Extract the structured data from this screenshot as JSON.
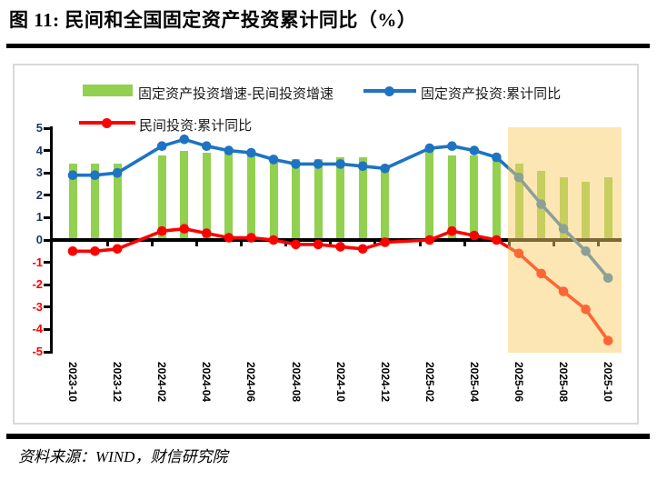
{
  "title": "图 11: 民间和全国固定资产投资累计同比（%）",
  "source": "资料来源：WIND，财信研究院",
  "legend": [
    {
      "label": "固定资产投资增速-民间投资增速",
      "type": "bar"
    },
    {
      "label": "固定资产投资:累计同比",
      "type": "line"
    },
    {
      "label": "民间投资:累计同比",
      "type": "line"
    }
  ],
  "colors": {
    "bar_green": "#92D050",
    "line_blue": "#1E73C2",
    "line_red": "#FF0000",
    "y_label_positive": "#1F3864",
    "y_label_negative": "#FF0000",
    "axis_black": "#000000",
    "highlight_overlay": "rgba(250,205,105,0.5)",
    "card_border": "#D9D9D9"
  },
  "chart_data": {
    "type": "bar",
    "subtype": "bar + line combo, monthly timeline with empty January slots",
    "title": "民间和全国固定资产投资累计同比（%）",
    "ylim": [
      -5,
      5
    ],
    "y_ticks": [
      5,
      4,
      3,
      2,
      1,
      0,
      -1,
      -2,
      -3,
      -4,
      -5
    ],
    "x_slots": [
      "2023-10",
      "2023-11",
      "2023-12",
      "2024-01",
      "2024-02",
      "2024-03",
      "2024-04",
      "2024-05",
      "2024-06",
      "2024-07",
      "2024-08",
      "2024-09",
      "2024-10",
      "2024-11",
      "2024-12",
      "2025-01",
      "2025-02",
      "2025-03",
      "2025-04",
      "2025-05",
      "2025-06",
      "2025-07",
      "2025-08",
      "2025-09",
      "2025-10"
    ],
    "x_tick_labels": [
      "2023-10",
      "2023-12",
      "2024-02",
      "2024-04",
      "2024-06",
      "2024-08",
      "2024-10",
      "2024-12",
      "2025-02",
      "2025-04",
      "2025-06",
      "2025-08",
      "2025-10"
    ],
    "series": [
      {
        "name": "固定资产投资增速-民间投资增速",
        "type": "bar",
        "color": "#92D050",
        "values": [
          3.4,
          3.4,
          3.4,
          null,
          3.8,
          4.0,
          3.9,
          3.9,
          3.8,
          3.6,
          3.6,
          3.6,
          3.7,
          3.7,
          3.3,
          null,
          4.1,
          3.8,
          3.8,
          3.7,
          3.4,
          3.1,
          2.8,
          2.6,
          2.8
        ]
      },
      {
        "name": "固定资产投资:累计同比",
        "type": "line",
        "color": "#1E73C2",
        "values": [
          2.9,
          2.9,
          3.0,
          null,
          4.2,
          4.5,
          4.2,
          4.0,
          3.9,
          3.6,
          3.4,
          3.4,
          3.4,
          3.3,
          3.2,
          null,
          4.1,
          4.2,
          4.0,
          3.7,
          2.8,
          1.6,
          0.5,
          -0.5,
          -1.7
        ]
      },
      {
        "name": "民间投资:累计同比",
        "type": "line",
        "color": "#FF0000",
        "values": [
          -0.5,
          -0.5,
          -0.4,
          null,
          0.4,
          0.5,
          0.3,
          0.1,
          0.1,
          0.0,
          -0.2,
          -0.2,
          -0.3,
          -0.4,
          -0.1,
          null,
          0.0,
          0.4,
          0.2,
          0.0,
          -0.6,
          -1.5,
          -2.3,
          -3.1,
          -4.5
        ]
      }
    ],
    "highlight": {
      "from_slot_boundary": 19.5,
      "to_right_edge": true,
      "covers": [
        "2025-06",
        "2025-07",
        "2025-08",
        "2025-09",
        "2025-10"
      ]
    },
    "grid": "off",
    "legend_position": "top"
  }
}
